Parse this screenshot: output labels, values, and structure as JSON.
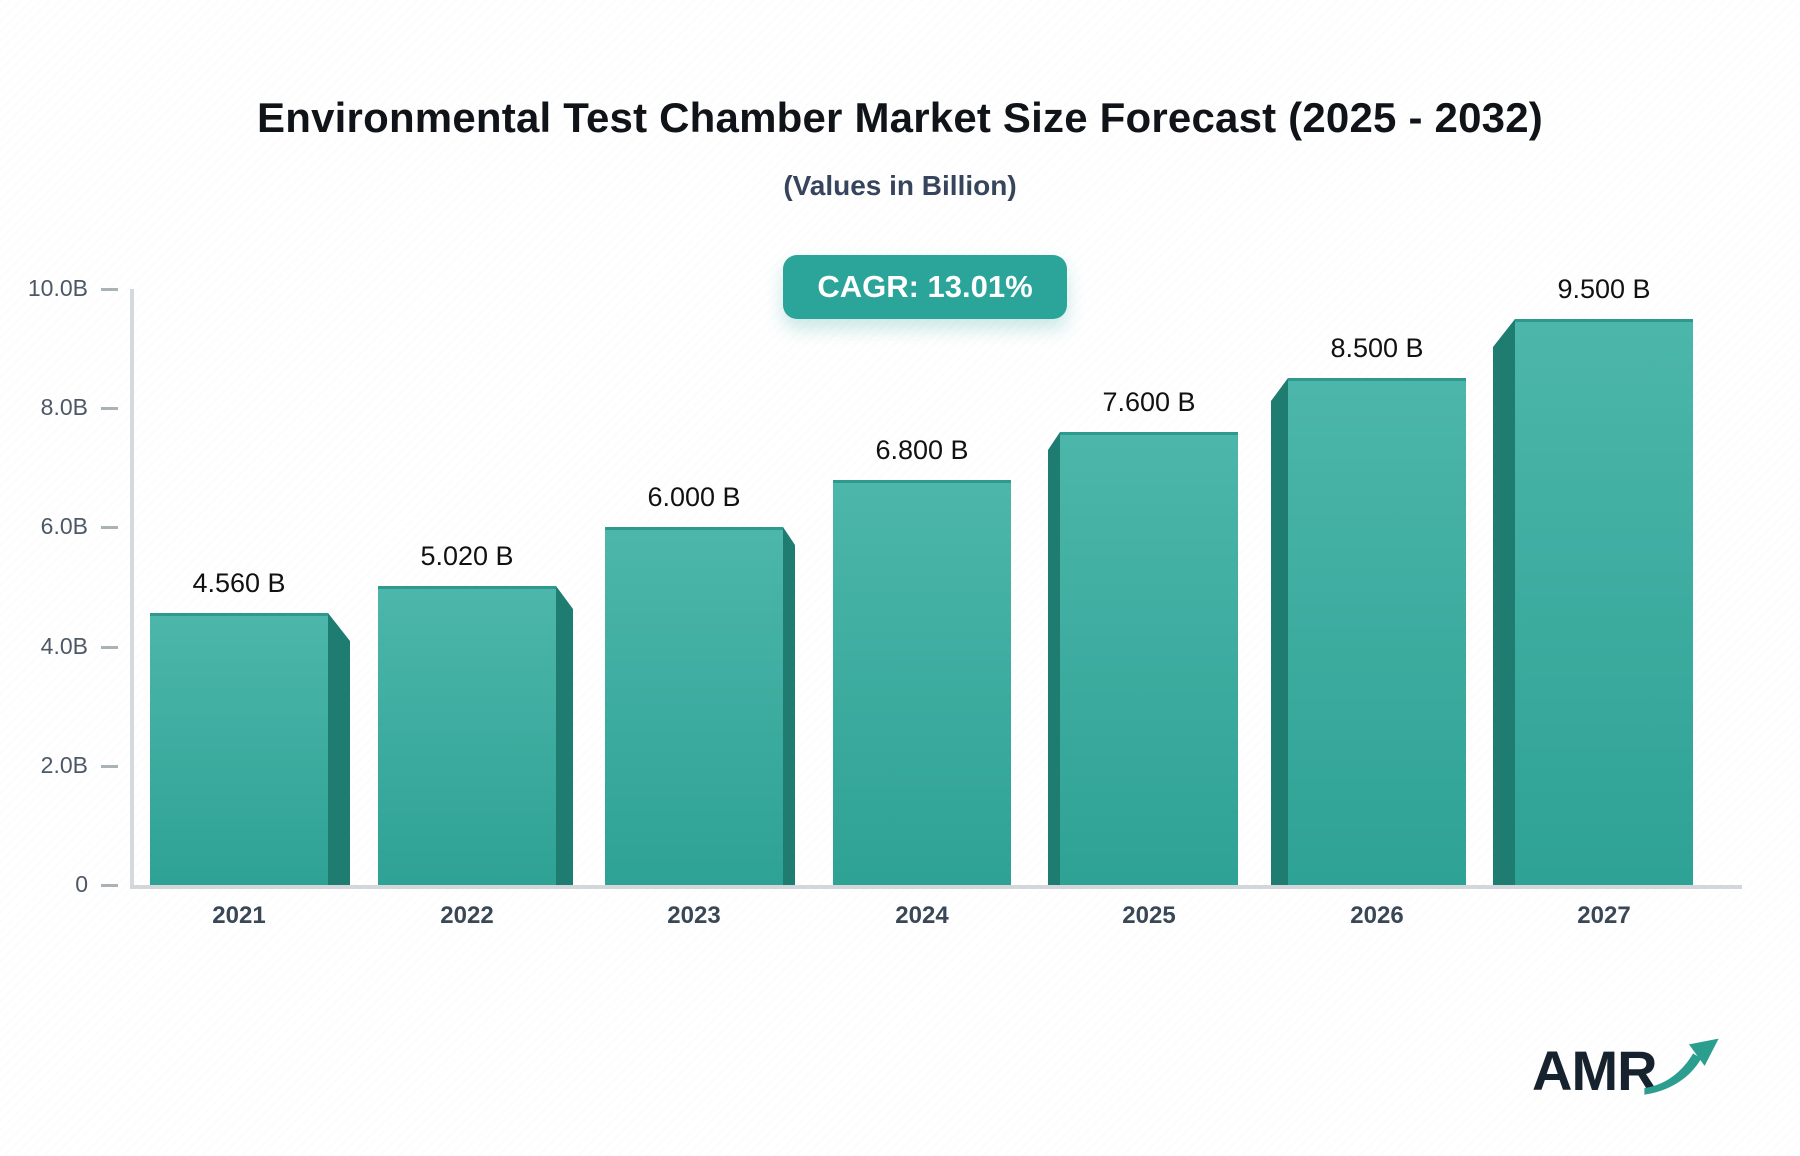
{
  "header": {
    "title": "Environmental Test Chamber Market Size Forecast (2025 - 2032)",
    "subtitle": "(Values in Billion)",
    "cagr_badge": "CAGR: 13.01%"
  },
  "chart_data": {
    "type": "bar",
    "title": "Environmental Test Chamber Market Size Forecast (2025 - 2032)",
    "subtitle": "(Values in Billion)",
    "annotation": "CAGR: 13.01%",
    "categories": [
      "2021",
      "2022",
      "2023",
      "2024",
      "2025",
      "2026",
      "2027"
    ],
    "values": [
      4.56,
      5.02,
      6.0,
      6.8,
      7.6,
      8.5,
      9.5
    ],
    "value_labels": [
      "4.560 B",
      "5.020 B",
      "6.000 B",
      "6.800 B",
      "7.600 B",
      "8.500 B",
      "9.500 B"
    ],
    "xlabel": "",
    "ylabel": "",
    "ylim": [
      0,
      10
    ],
    "y_ticks": [
      {
        "label": "0",
        "value": 0
      },
      {
        "label": "2.0B",
        "value": 2
      },
      {
        "label": "4.0B",
        "value": 4
      },
      {
        "label": "6.0B",
        "value": 6
      },
      {
        "label": "8.0B",
        "value": 8
      },
      {
        "label": "10.0B",
        "value": 10
      }
    ],
    "grid": false,
    "legend": false,
    "bar_style": "3d-extruded-teal-center-vanishing-point"
  },
  "colors": {
    "bar_face_top": "#4cb6aa",
    "bar_face_bottom": "#2ea295",
    "bar_face_border": "#2e9a8d",
    "bar_side": "#1f7c71",
    "badge_bg": "#2ba59a",
    "badge_text": "#ffffff",
    "axis_line": "#d5d8de",
    "baseline": "#d3d6db",
    "tick": "#a9b3b6",
    "tick_label": "#4d5866",
    "x_label": "#3a4757",
    "value_label": "#111111",
    "title": "#101418",
    "subtitle": "#36455c",
    "logo_text": "#16222e",
    "logo_arrow": "#2b9e90"
  },
  "logo": {
    "text": "AMR"
  }
}
